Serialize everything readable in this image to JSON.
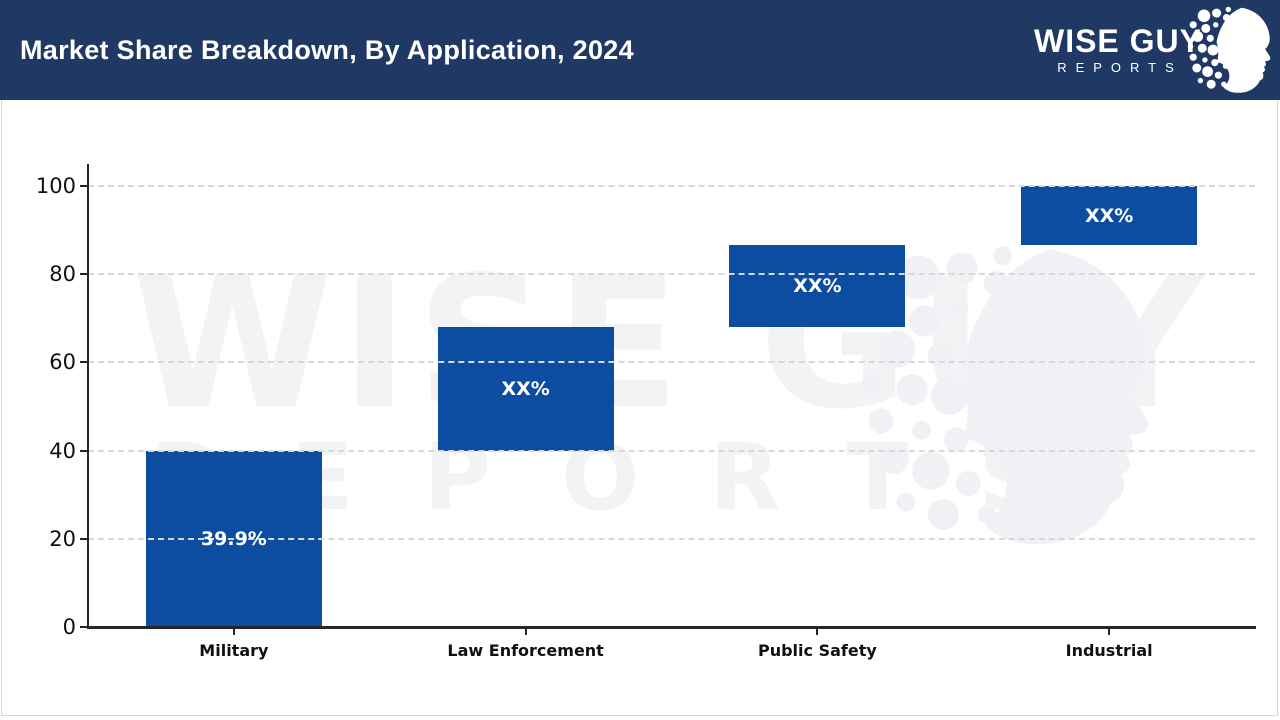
{
  "header": {
    "title": "Market Share Breakdown, By Application, 2024",
    "logo": {
      "line1": "WISE GUY",
      "line2": "REPORTS"
    }
  },
  "watermark": {
    "line1": "WISE GUY",
    "line2": "REPORTS"
  },
  "colors": {
    "header_bg": "#203864",
    "bar": "#0c4da2",
    "grid": "#d8d8d8",
    "axis": "#262626",
    "value_label": "#ffffff",
    "watermark": "#f2f3f5"
  },
  "chart_data": {
    "type": "bar",
    "subtype": "waterfall",
    "title": "Market Share Breakdown, By Application, 2024",
    "categories": [
      "Military",
      "Law Enforcement",
      "Public Safety",
      "Industrial"
    ],
    "segments": [
      {
        "category": "Military",
        "start": 0,
        "end": 39.9,
        "label": "39.9%"
      },
      {
        "category": "Law Enforcement",
        "start": 39.9,
        "end": 68.0,
        "label": "XX%"
      },
      {
        "category": "Public Safety",
        "start": 68.0,
        "end": 86.6,
        "label": "XX%"
      },
      {
        "category": "Industrial",
        "start": 86.6,
        "end": 100,
        "label": "XX%"
      }
    ],
    "xlabel": "",
    "ylabel": "",
    "ylim": [
      0,
      100
    ],
    "yticks": [
      0,
      20,
      40,
      60,
      80,
      100
    ],
    "grid": "horizontal dashed",
    "legend": "none",
    "bar_color": "#0c4da2",
    "value_label_color": "#ffffff"
  }
}
